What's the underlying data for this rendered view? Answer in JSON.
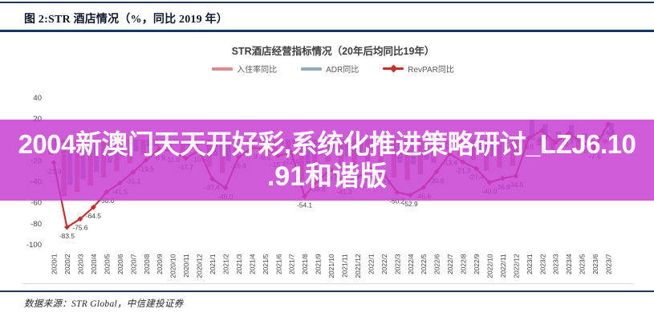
{
  "figure": {
    "caption": "图 2:STR 酒店情况（%，同比 2019 年）",
    "source": "数据来源：STR Global，中信建投证券"
  },
  "overlay": {
    "line1": "2004新澳门天天开好彩,系统化推进策略研讨_LZJ6.10",
    "line2": ".91和谐版",
    "color": "#c63cd0"
  },
  "chart_data": {
    "type": "combo-bar-line",
    "title": "STR酒店经营指标情况（20年后均同比19年）",
    "ylim": [
      -100,
      40
    ],
    "yticks": [
      40,
      20,
      0,
      -20,
      -40,
      -60,
      -80,
      -100
    ],
    "grid": false,
    "legend_position": "top",
    "categories": [
      "2020/1",
      "2020/2",
      "2020/3",
      "2020/4",
      "2020/5",
      "2020/6",
      "2020/7",
      "2020/8",
      "2020/9",
      "2020/10",
      "2020/11",
      "2020/12",
      "2021/1",
      "2021/2",
      "2021/3",
      "2021/4",
      "2021/5",
      "2021/6",
      "2021/7",
      "2021/8",
      "2021/9",
      "2021/10",
      "2021/11",
      "2021/12",
      "2022/1",
      "2022/2",
      "2022/3",
      "2022/4",
      "2022/5",
      "2022/6",
      "2022/7",
      "2022/8",
      "2022/9",
      "2022/10",
      "2022/11",
      "2022/12",
      "2023/1",
      "2023/2",
      "2023/3",
      "2023/4",
      "2023/5",
      "2023/6",
      "2023/7"
    ],
    "series": [
      {
        "name": "入住率同比",
        "type": "bar",
        "color": "#d98b92",
        "values": [
          -14.5,
          -54.0,
          -50.0,
          -44.0,
          -36.0,
          -30.0,
          -22.5,
          -14.0,
          -6.5,
          -8.0,
          -12.5,
          -7.5,
          -26.0,
          -32.0,
          -12.0,
          -6.0,
          -6.5,
          -11.0,
          -9.0,
          -39.0,
          -28.0,
          -21.0,
          -29.5,
          -25.5,
          -20.5,
          -23.5,
          -36.0,
          -38.5,
          -33.0,
          -22.0,
          -9.5,
          -15.0,
          -19.5,
          -29.5,
          -26.5,
          -25.0,
          -9.0,
          -5.5,
          -9.5,
          -7.0,
          -8.0,
          -11.0,
          -3.5
        ]
      },
      {
        "name": "ADR同比",
        "type": "bar",
        "color": "#8fa9be",
        "values": [
          -8.5,
          -43.0,
          -38.0,
          -30.5,
          -22.0,
          -16.5,
          -11.0,
          -6.5,
          -2.5,
          -3.5,
          -6.0,
          -3.0,
          -15.5,
          -20.5,
          -5.0,
          -2.0,
          -2.0,
          -5.0,
          -3.5,
          -24.5,
          -15.0,
          -9.5,
          -16.5,
          -14.0,
          -10.0,
          -12.0,
          -22.0,
          -23.5,
          -19.0,
          -11.0,
          -4.5,
          -7.5,
          -10.0,
          -16.0,
          -14.5,
          -13.0,
          19.0,
          15.0,
          7.5,
          14.0,
          6.0,
          3.5,
          16.0
        ]
      },
      {
        "name": "RevPAR同比",
        "type": "line",
        "color": "#c3302e",
        "data_labels": true,
        "values": [
          -21.9,
          -83.5,
          -75.6,
          -64.5,
          -50.0,
          -41.5,
          -31.1,
          -19.5,
          -8.9,
          -11.0,
          -17.7,
          -10.5,
          -37.4,
          -46.0,
          -16.6,
          -7.9,
          -8.5,
          -15.3,
          -12.4,
          -54.1,
          -38.8,
          -28.6,
          -41.3,
          -35.8,
          -28.3,
          -32.6,
          -50.2,
          -52.9,
          -45.6,
          -30.6,
          -13.4,
          -21.3,
          -27.4,
          -40.9,
          -36.9,
          -34.5,
          1.6,
          8.7,
          -2.9,
          6.3,
          -2.6,
          -7.6,
          14.8
        ]
      }
    ]
  }
}
